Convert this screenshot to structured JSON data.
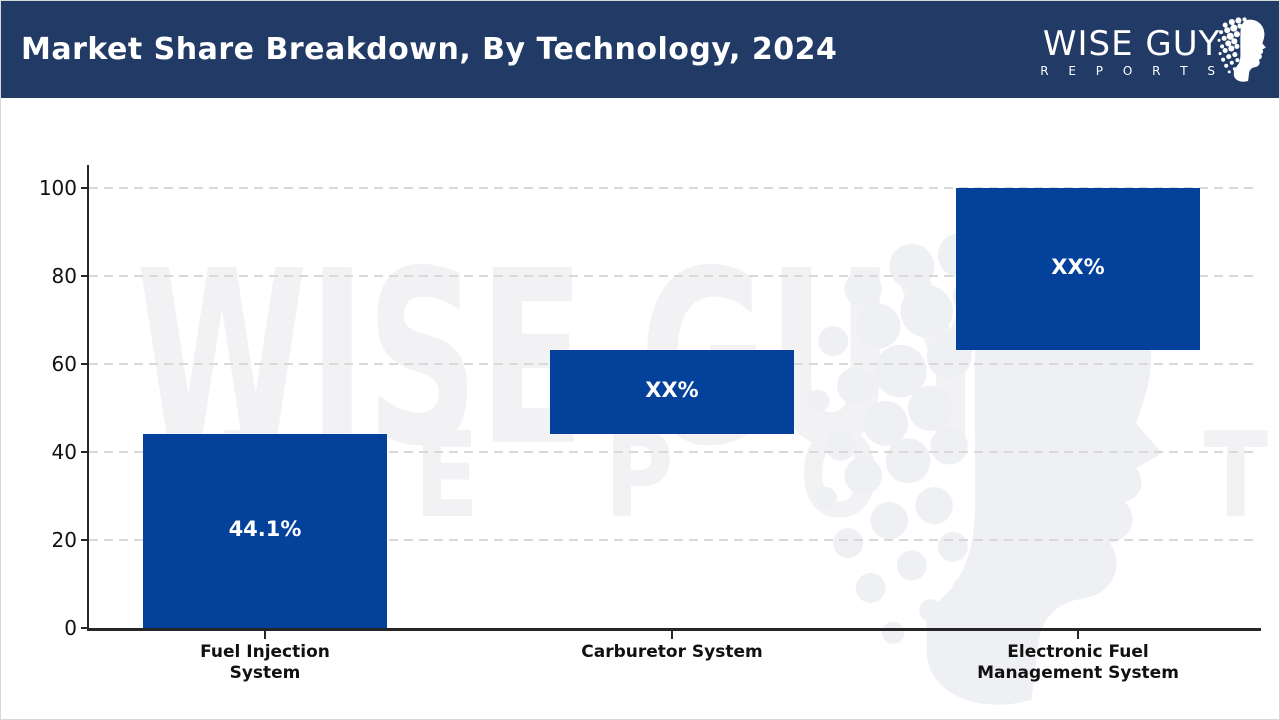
{
  "header": {
    "title": "Market Share Breakdown, By Technology, 2024",
    "bg_color": "#213a66",
    "logo": {
      "line1": "WISE GUY",
      "line2": "R E P O R T S"
    }
  },
  "watermark": {
    "line1": "WISE GUY",
    "line2": "R E P O R T S"
  },
  "chart_data": {
    "type": "bar",
    "variant": "waterfall",
    "title": "Market Share Breakdown, By Technology, 2024",
    "categories": [
      "Fuel Injection System",
      "Carburetor System",
      "Electronic Fuel Management System"
    ],
    "category_lines": [
      [
        "Fuel Injection",
        "System"
      ],
      [
        "Carburetor System"
      ],
      [
        "Electronic Fuel",
        "Management System"
      ]
    ],
    "segments": [
      {
        "category": "Fuel Injection System",
        "start": 0,
        "end": 44.1,
        "label": "44.1%"
      },
      {
        "category": "Carburetor System",
        "start": 44.1,
        "end": 63.2,
        "label": "XX%"
      },
      {
        "category": "Electronic Fuel Management System",
        "start": 63.2,
        "end": 100,
        "label": "XX%"
      }
    ],
    "values": [
      44.1,
      19.1,
      36.8
    ],
    "xlabel": "",
    "ylabel": "",
    "yticks": [
      0,
      20,
      40,
      60,
      80,
      100
    ],
    "ylim": [
      0,
      105
    ],
    "grid": "horizontal-dashed",
    "legend": "none",
    "bar_color": "#04419a",
    "bar_label_color": "#ffffff",
    "axis_color": "#262626",
    "grid_color": "#d9d9d9"
  }
}
